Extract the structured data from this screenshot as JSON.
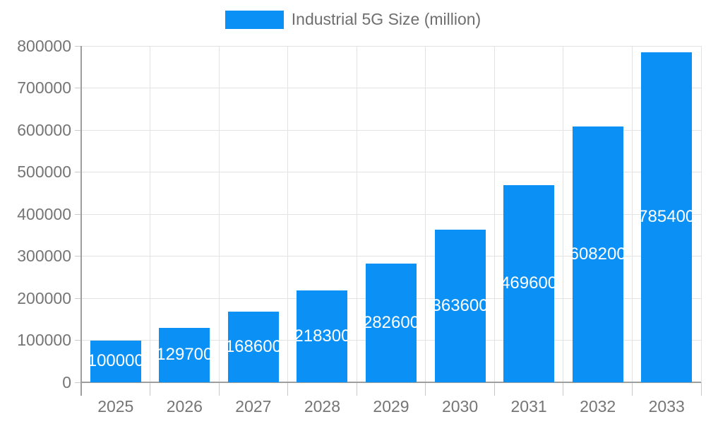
{
  "legend": {
    "label": "Industrial 5G Size (million)"
  },
  "colors": {
    "bar": "#0b90f5",
    "axis_text": "#757575",
    "legend_text": "#6f6f6f",
    "gridline": "#e3e3e3",
    "axis_line": "#9e9e9e",
    "bar_label_text": "#ffffff",
    "background": "#ffffff"
  },
  "chart_data": {
    "type": "bar",
    "title": "",
    "xlabel": "",
    "ylabel": "",
    "categories": [
      "2025",
      "2026",
      "2027",
      "2028",
      "2029",
      "2030",
      "2031",
      "2032",
      "2033"
    ],
    "series": [
      {
        "name": "Industrial 5G Size (million)",
        "values": [
          100000,
          129700,
          168600,
          218300,
          282600,
          363600,
          469600,
          608200,
          785400
        ]
      }
    ],
    "data_labels": [
      "100000",
      "129700",
      "168600",
      "218300",
      "282600",
      "363600",
      "469600",
      "608200",
      "785400"
    ],
    "ylim": [
      0,
      800000
    ],
    "ytick_step": 100000,
    "ytick_labels": [
      "0",
      "100000",
      "200000",
      "300000",
      "400000",
      "500000",
      "600000",
      "700000",
      "800000"
    ],
    "grid": true,
    "legend_position": "top-center"
  }
}
